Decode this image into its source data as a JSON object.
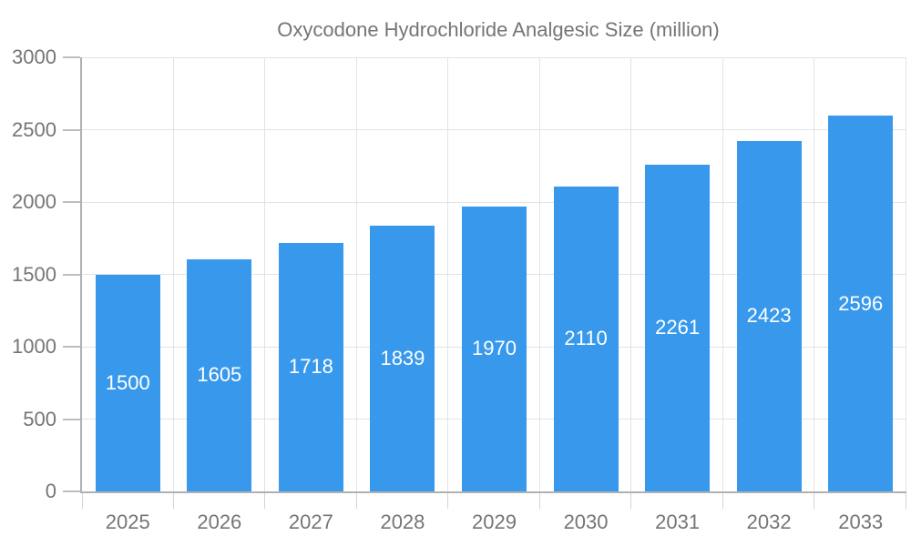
{
  "chart_data": {
    "type": "bar",
    "title": "Oxycodone Hydrochloride Analgesic Size (million)",
    "categories": [
      "2025",
      "2026",
      "2027",
      "2028",
      "2029",
      "2030",
      "2031",
      "2032",
      "2033"
    ],
    "values": [
      1500,
      1605,
      1718,
      1839,
      1970,
      2110,
      2261,
      2423,
      2596
    ],
    "xlabel": "",
    "ylabel": "",
    "ylim": [
      0,
      3000
    ],
    "yticks": [
      0,
      500,
      1000,
      1500,
      2000,
      2500,
      3000
    ],
    "grid": true,
    "legend_position": "top-center",
    "bar_labels_inside": true,
    "colors": {
      "bar": "#3899ec",
      "bar_label_text": "#ffffff",
      "axis_line": "#b1b1b1",
      "gridline": "#e3e3e3",
      "tick": "#bdbdbd",
      "axis_text": "#757575",
      "legend_text": "#757575",
      "background": "#ffffff"
    }
  },
  "legend": {
    "label": "Oxycodone Hydrochloride Analgesic Size (million)"
  }
}
